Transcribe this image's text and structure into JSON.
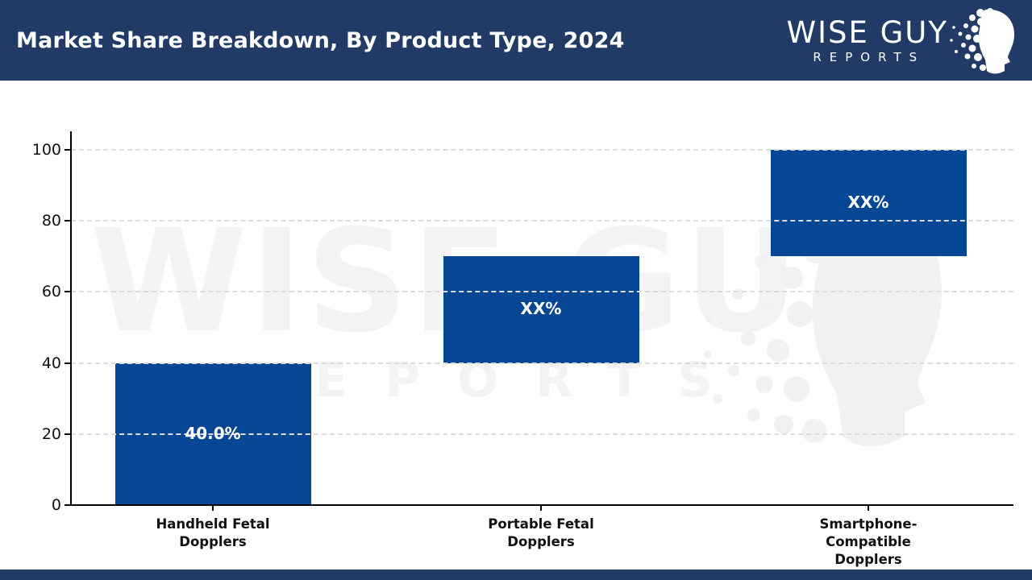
{
  "header": {
    "title": "Market Share Breakdown, By Product Type, 2024",
    "logo": {
      "line1": "WISE GUY",
      "line2": "REPORTS"
    }
  },
  "watermark": {
    "line1": "WISE GUY",
    "line2": "REPORTS"
  },
  "chart_data": {
    "type": "bar",
    "subtype": "floating-segment (waterfall style)",
    "title": "Market Share Breakdown, By Product Type, 2024",
    "categories": [
      "Handheld Fetal Dopplers",
      "Portable Fetal Dopplers",
      "Smartphone-Compatible Dopplers"
    ],
    "segments": [
      {
        "category": "Handheld Fetal Dopplers",
        "start": 0,
        "end": 40,
        "label": "40.0%"
      },
      {
        "category": "Portable Fetal Dopplers",
        "start": 40,
        "end": 70,
        "label": "XX%"
      },
      {
        "category": "Smartphone-Compatible Dopplers",
        "start": 70,
        "end": 100,
        "label": "XX%"
      }
    ],
    "xlabel": "",
    "ylabel": "",
    "ylim": [
      0,
      100
    ],
    "yticks": [
      0,
      20,
      40,
      60,
      80,
      100
    ],
    "grid": "horizontal dashed, drawn above bars",
    "legend": "none",
    "bar_color": "#064795",
    "value_label_color": "#ffffff"
  },
  "colors": {
    "header_bg": "#213a66",
    "footer_bg": "#213a66",
    "title_text": "#ffffff",
    "watermark": "#f3f3f3",
    "gridline": "#dcdcdc",
    "axis": "#000000"
  }
}
